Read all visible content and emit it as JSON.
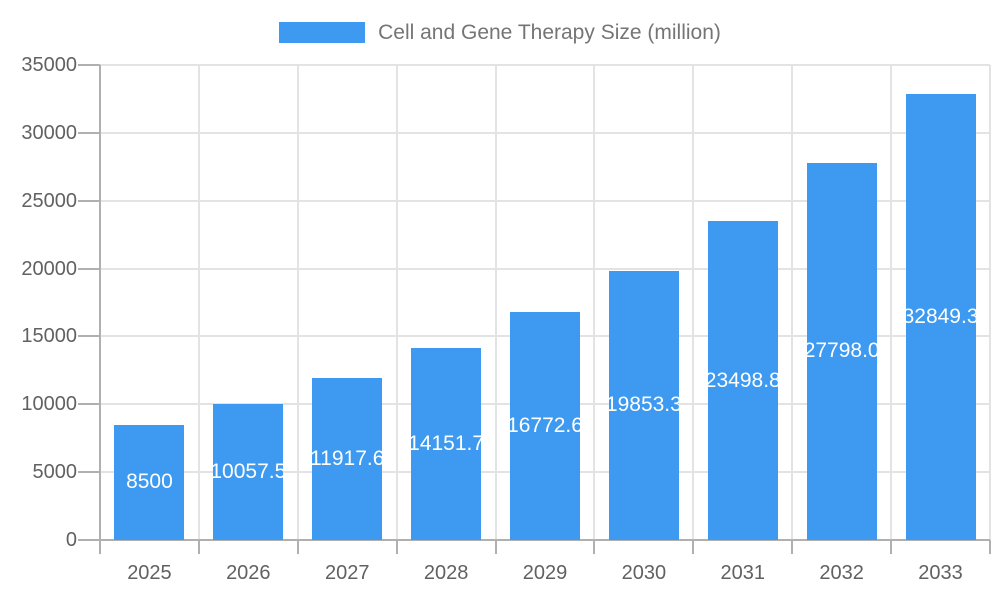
{
  "legend": {
    "label": "Cell and Gene Therapy Size (million)"
  },
  "colors": {
    "bar": "#3D9AF0",
    "legend_text": "#757575",
    "axis_label_text": "#616161",
    "grid_line": "#e3e3e3",
    "axis_line": "#b0b0b0",
    "bar_label_text": "#ffffff",
    "background": "#ffffff"
  },
  "chart_data": {
    "type": "bar",
    "title": "Cell and Gene Therapy Size (million)",
    "legend_position": "top",
    "grid": "on",
    "categories": [
      "2025",
      "2026",
      "2027",
      "2028",
      "2029",
      "2030",
      "2031",
      "2032",
      "2033"
    ],
    "values": [
      8500,
      10057.5,
      11917.6,
      14151.7,
      16772.6,
      19853.3,
      23498.8,
      27798.0,
      32849.3
    ],
    "bar_labels": [
      "8500",
      "10057.5",
      "11917.6",
      "14151.7",
      "16772.6",
      "19853.3",
      "23498.8",
      "27798.0",
      "32849.3"
    ],
    "xlabel": "",
    "ylabel": "",
    "ylim": [
      0,
      35000
    ],
    "y_ticks": [
      0,
      5000,
      10000,
      15000,
      20000,
      25000,
      30000,
      35000
    ]
  }
}
